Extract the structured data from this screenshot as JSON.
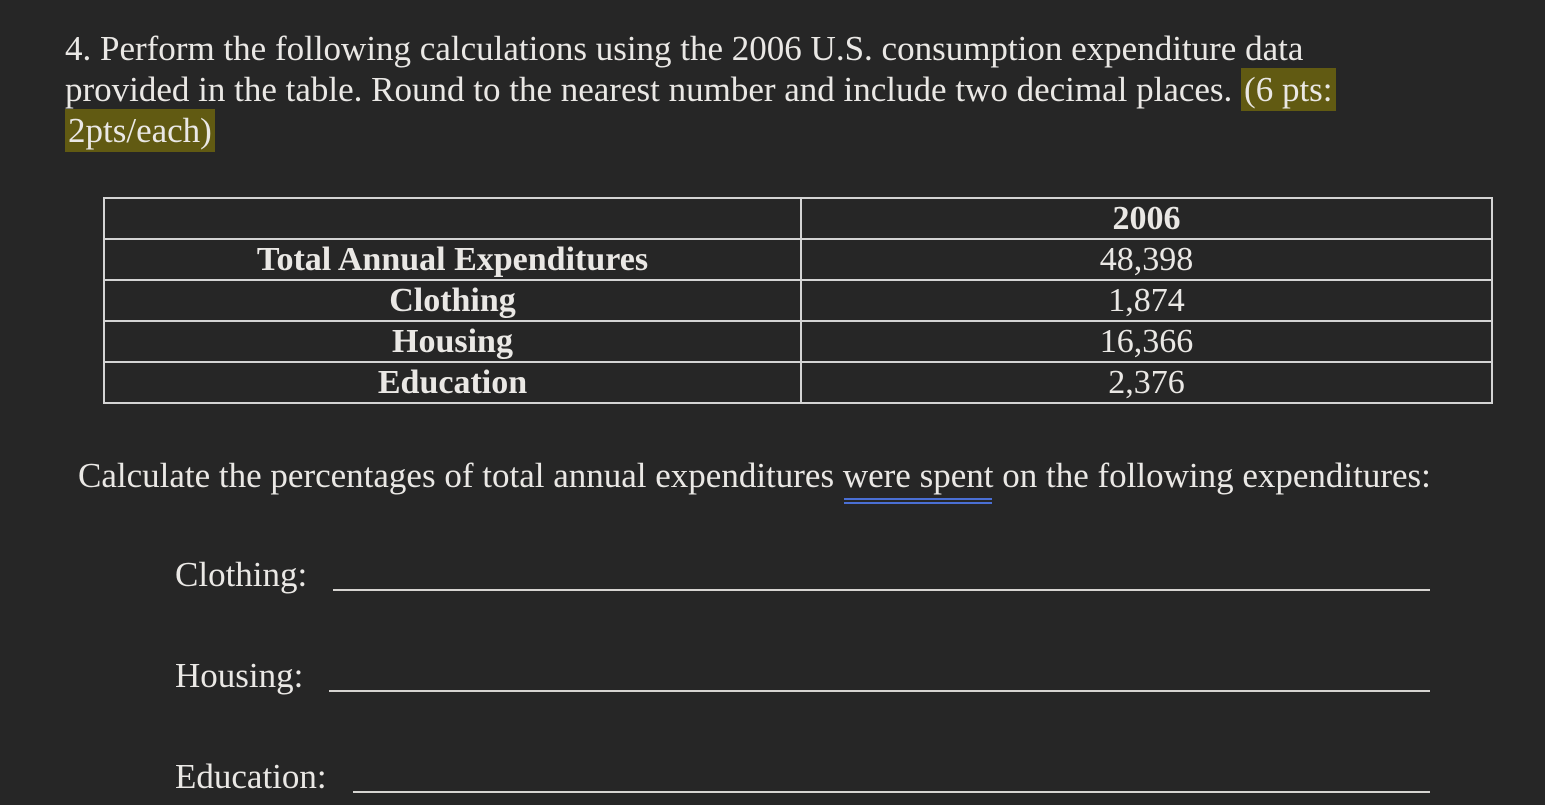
{
  "colors": {
    "background": "#262626",
    "text": "#eae8e5",
    "highlight": "#615a12",
    "grammar_underline": "#4a6fd4",
    "table_border": "#d4d4d4",
    "blank_line": "#d6d4d1"
  },
  "question": {
    "text_before_highlight": "4. Perform the following calculations using the 2006 U.S. consumption expenditure data provided in the table.  Round to the nearest number and include two decimal places. ",
    "highlighted_text": "(6 pts: 2pts/each)"
  },
  "table": {
    "header": {
      "label": "",
      "year": "2006"
    },
    "rows": [
      {
        "label": "Total Annual Expenditures",
        "value": "48,398"
      },
      {
        "label": "Clothing",
        "value": "1,874"
      },
      {
        "label": "Housing",
        "value": "16,366"
      },
      {
        "label": "Education",
        "value": "2,376"
      }
    ]
  },
  "instruction": {
    "text_before": "Calculate the percentages of total annual expenditures ",
    "grammar_flagged": "were spent",
    "text_after": " on the following expenditures:"
  },
  "answers": [
    {
      "label": "Clothing:"
    },
    {
      "label": "Housing:"
    },
    {
      "label": "Education:"
    }
  ]
}
